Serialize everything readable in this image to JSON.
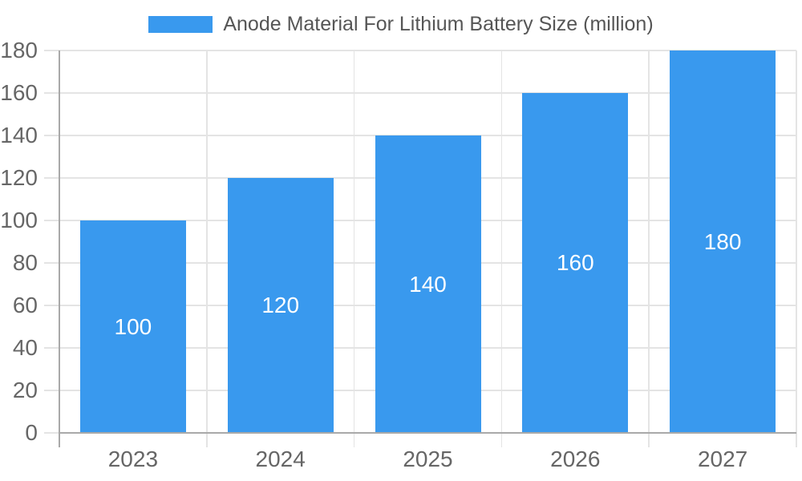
{
  "chart_data": {
    "type": "bar",
    "title": "Anode Material For Lithium Battery Size (million)",
    "categories": [
      "2023",
      "2024",
      "2025",
      "2026",
      "2027"
    ],
    "series": [
      {
        "name": "Anode Material For Lithium Battery Size (million)",
        "values": [
          100,
          120,
          140,
          160,
          180
        ]
      }
    ],
    "bar_value_labels": [
      "100",
      "120",
      "140",
      "160",
      "180"
    ],
    "xlabel": "",
    "ylabel": "",
    "ylim": [
      0,
      180
    ],
    "yticks": [
      0,
      20,
      40,
      60,
      80,
      100,
      120,
      140,
      160,
      180
    ],
    "grid": "horizontal-and-vertical",
    "legend_position": "top-center",
    "colors": {
      "bar": "#3999ee",
      "bar_label": "#ffffff",
      "axis_line": "#a9a9a9",
      "grid_line": "#e4e4e4",
      "tick_label": "#666666",
      "legend_text": "#565656",
      "background": "#ffffff"
    }
  },
  "legend": {
    "items": [
      {
        "label": "Anode Material For Lithium Battery Size (million)",
        "marker_color": "#3999ee"
      }
    ]
  }
}
